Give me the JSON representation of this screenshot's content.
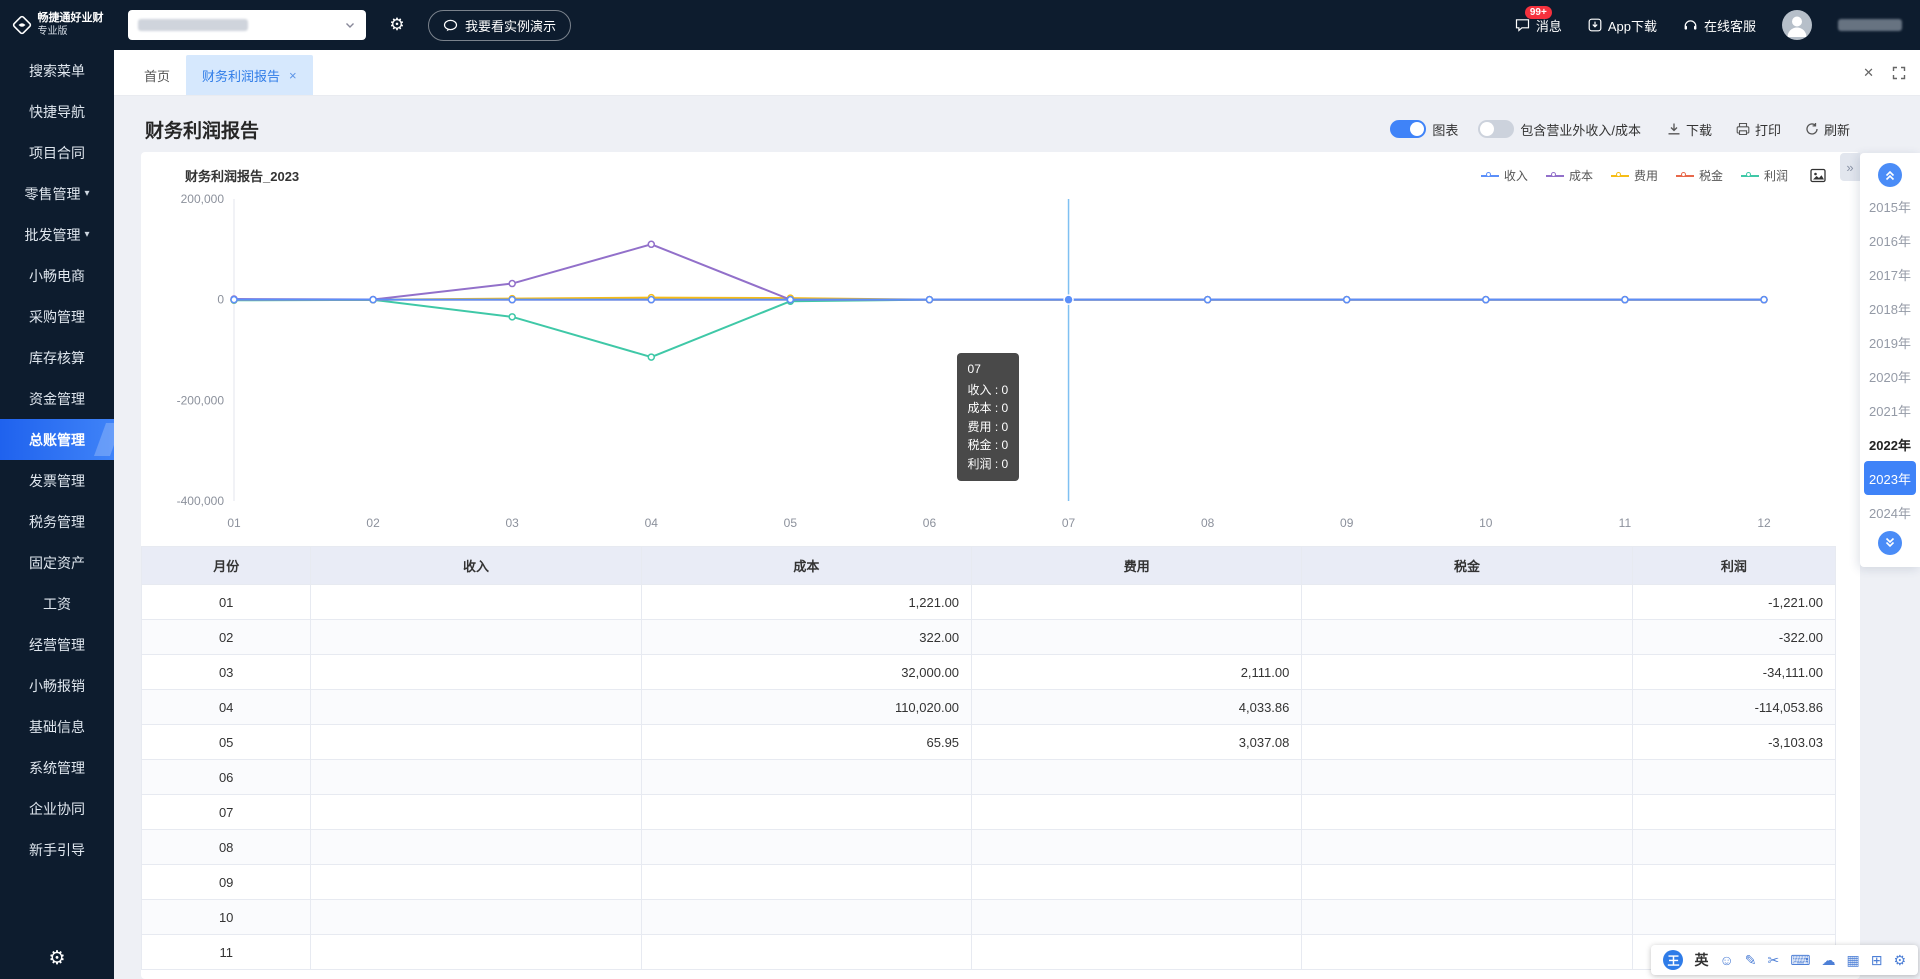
{
  "app": {
    "logo_title": "畅捷通好业财",
    "logo_subtitle": "专业版"
  },
  "topbar": {
    "demo_button": "我要看实例演示",
    "messages_label": "消息",
    "messages_badge": "99+",
    "app_download_label": "App下载",
    "support_label": "在线客服"
  },
  "sidebar": {
    "items": [
      {
        "key": "search-menu",
        "label": "搜索菜单"
      },
      {
        "key": "quick-nav",
        "label": "快捷导航"
      },
      {
        "key": "project-contract",
        "label": "项目合同"
      },
      {
        "key": "retail-mgmt",
        "label": "零售管理",
        "arrow": true
      },
      {
        "key": "wholesale-mgmt",
        "label": "批发管理",
        "arrow": true
      },
      {
        "key": "xiaochang-ecommerce",
        "label": "小畅电商"
      },
      {
        "key": "purchase-mgmt",
        "label": "采购管理"
      },
      {
        "key": "inventory-accounting",
        "label": "库存核算"
      },
      {
        "key": "fund-mgmt",
        "label": "资金管理"
      },
      {
        "key": "general-ledger",
        "label": "总账管理",
        "active": true
      },
      {
        "key": "invoice-mgmt",
        "label": "发票管理"
      },
      {
        "key": "tax-mgmt",
        "label": "税务管理"
      },
      {
        "key": "fixed-assets",
        "label": "固定资产"
      },
      {
        "key": "payroll",
        "label": "工资"
      },
      {
        "key": "business-mgmt",
        "label": "经营管理"
      },
      {
        "key": "xiaochang-expense",
        "label": "小畅报销"
      },
      {
        "key": "basic-info",
        "label": "基础信息"
      },
      {
        "key": "system-mgmt",
        "label": "系统管理"
      },
      {
        "key": "enterprise-collab",
        "label": "企业协同"
      },
      {
        "key": "beginner-guide",
        "label": "新手引导"
      }
    ]
  },
  "tabs": {
    "home": "首页",
    "report": "财务利润报告"
  },
  "page": {
    "title": "财务利润报告",
    "toggle_chart_label": "图表",
    "toggle_nonop_label": "包含营业外收入/成本",
    "download_label": "下载",
    "print_label": "打印",
    "refresh_label": "刷新"
  },
  "chart_data": {
    "type": "line",
    "title": "财务利润报告_2023",
    "x": [
      "01",
      "02",
      "03",
      "04",
      "05",
      "06",
      "07",
      "08",
      "09",
      "10",
      "11",
      "12"
    ],
    "ylim": [
      -400000,
      200000
    ],
    "yticks": [
      200000,
      0,
      -200000,
      -400000
    ],
    "ytick_labels": [
      "200,000",
      "0",
      "-200,000",
      "-400,000"
    ],
    "grid": false,
    "legend_position": "top-right",
    "series": [
      {
        "name": "收入",
        "color": "#5B8FF9",
        "values": [
          0,
          0,
          0,
          0,
          0,
          0,
          0,
          0,
          0,
          0,
          0,
          0
        ]
      },
      {
        "name": "成本",
        "color": "#9270CA",
        "values": [
          1221,
          322,
          32000,
          110020,
          65.95,
          0,
          0,
          0,
          0,
          0,
          0,
          0
        ]
      },
      {
        "name": "费用",
        "color": "#F6BD16",
        "values": [
          0,
          0,
          2111,
          4033.86,
          3037.08,
          0,
          0,
          0,
          0,
          0,
          0,
          0
        ]
      },
      {
        "name": "税金",
        "color": "#E8684A",
        "values": [
          0,
          0,
          0,
          0,
          0,
          0,
          0,
          0,
          0,
          0,
          0,
          0
        ]
      },
      {
        "name": "利润",
        "color": "#3FC8A7",
        "values": [
          -1221,
          -322,
          -34111,
          -114053.86,
          -3103.03,
          0,
          0,
          0,
          0,
          0,
          0,
          0
        ]
      }
    ],
    "tooltip": {
      "x": "07",
      "title": "07",
      "lines": [
        "收入 : 0",
        "成本 : 0",
        "费用 : 0",
        "税金 : 0",
        "利润 : 0"
      ]
    }
  },
  "year_panel": {
    "years": [
      "2015年",
      "2016年",
      "2017年",
      "2018年",
      "2019年",
      "2020年",
      "2021年",
      "2022年",
      "2023年",
      "2024年"
    ],
    "selected": "2023年",
    "emphasis": "2022年"
  },
  "table": {
    "columns": [
      "月份",
      "收入",
      "成本",
      "费用",
      "税金",
      "利润"
    ],
    "rows": [
      [
        "01",
        "",
        "1,221.00",
        "",
        "",
        "-1,221.00"
      ],
      [
        "02",
        "",
        "322.00",
        "",
        "",
        "-322.00"
      ],
      [
        "03",
        "",
        "32,000.00",
        "2,111.00",
        "",
        "-34,111.00"
      ],
      [
        "04",
        "",
        "110,020.00",
        "4,033.86",
        "",
        "-114,053.86"
      ],
      [
        "05",
        "",
        "65.95",
        "3,037.08",
        "",
        "-3,103.03"
      ],
      [
        "06",
        "",
        "",
        "",
        "",
        ""
      ],
      [
        "07",
        "",
        "",
        "",
        "",
        ""
      ],
      [
        "08",
        "",
        "",
        "",
        "",
        ""
      ],
      [
        "09",
        "",
        "",
        "",
        "",
        ""
      ],
      [
        "10",
        "",
        "",
        "",
        "",
        ""
      ],
      [
        "11",
        "",
        "",
        "",
        "",
        ""
      ]
    ]
  },
  "ime": {
    "logo": "王",
    "lang": "英",
    "icons": [
      {
        "name": "smiley-icon",
        "glyph": "☺"
      },
      {
        "name": "pencil-icon",
        "glyph": "✎"
      },
      {
        "name": "scissors-icon",
        "glyph": "✂"
      },
      {
        "name": "keyboard-icon",
        "glyph": "⌨"
      },
      {
        "name": "cloud-icon",
        "glyph": "☁"
      },
      {
        "name": "grid-icon",
        "glyph": "▦"
      },
      {
        "name": "toolbox-icon",
        "glyph": "⊞"
      },
      {
        "name": "gear-icon",
        "glyph": "⚙"
      }
    ]
  }
}
